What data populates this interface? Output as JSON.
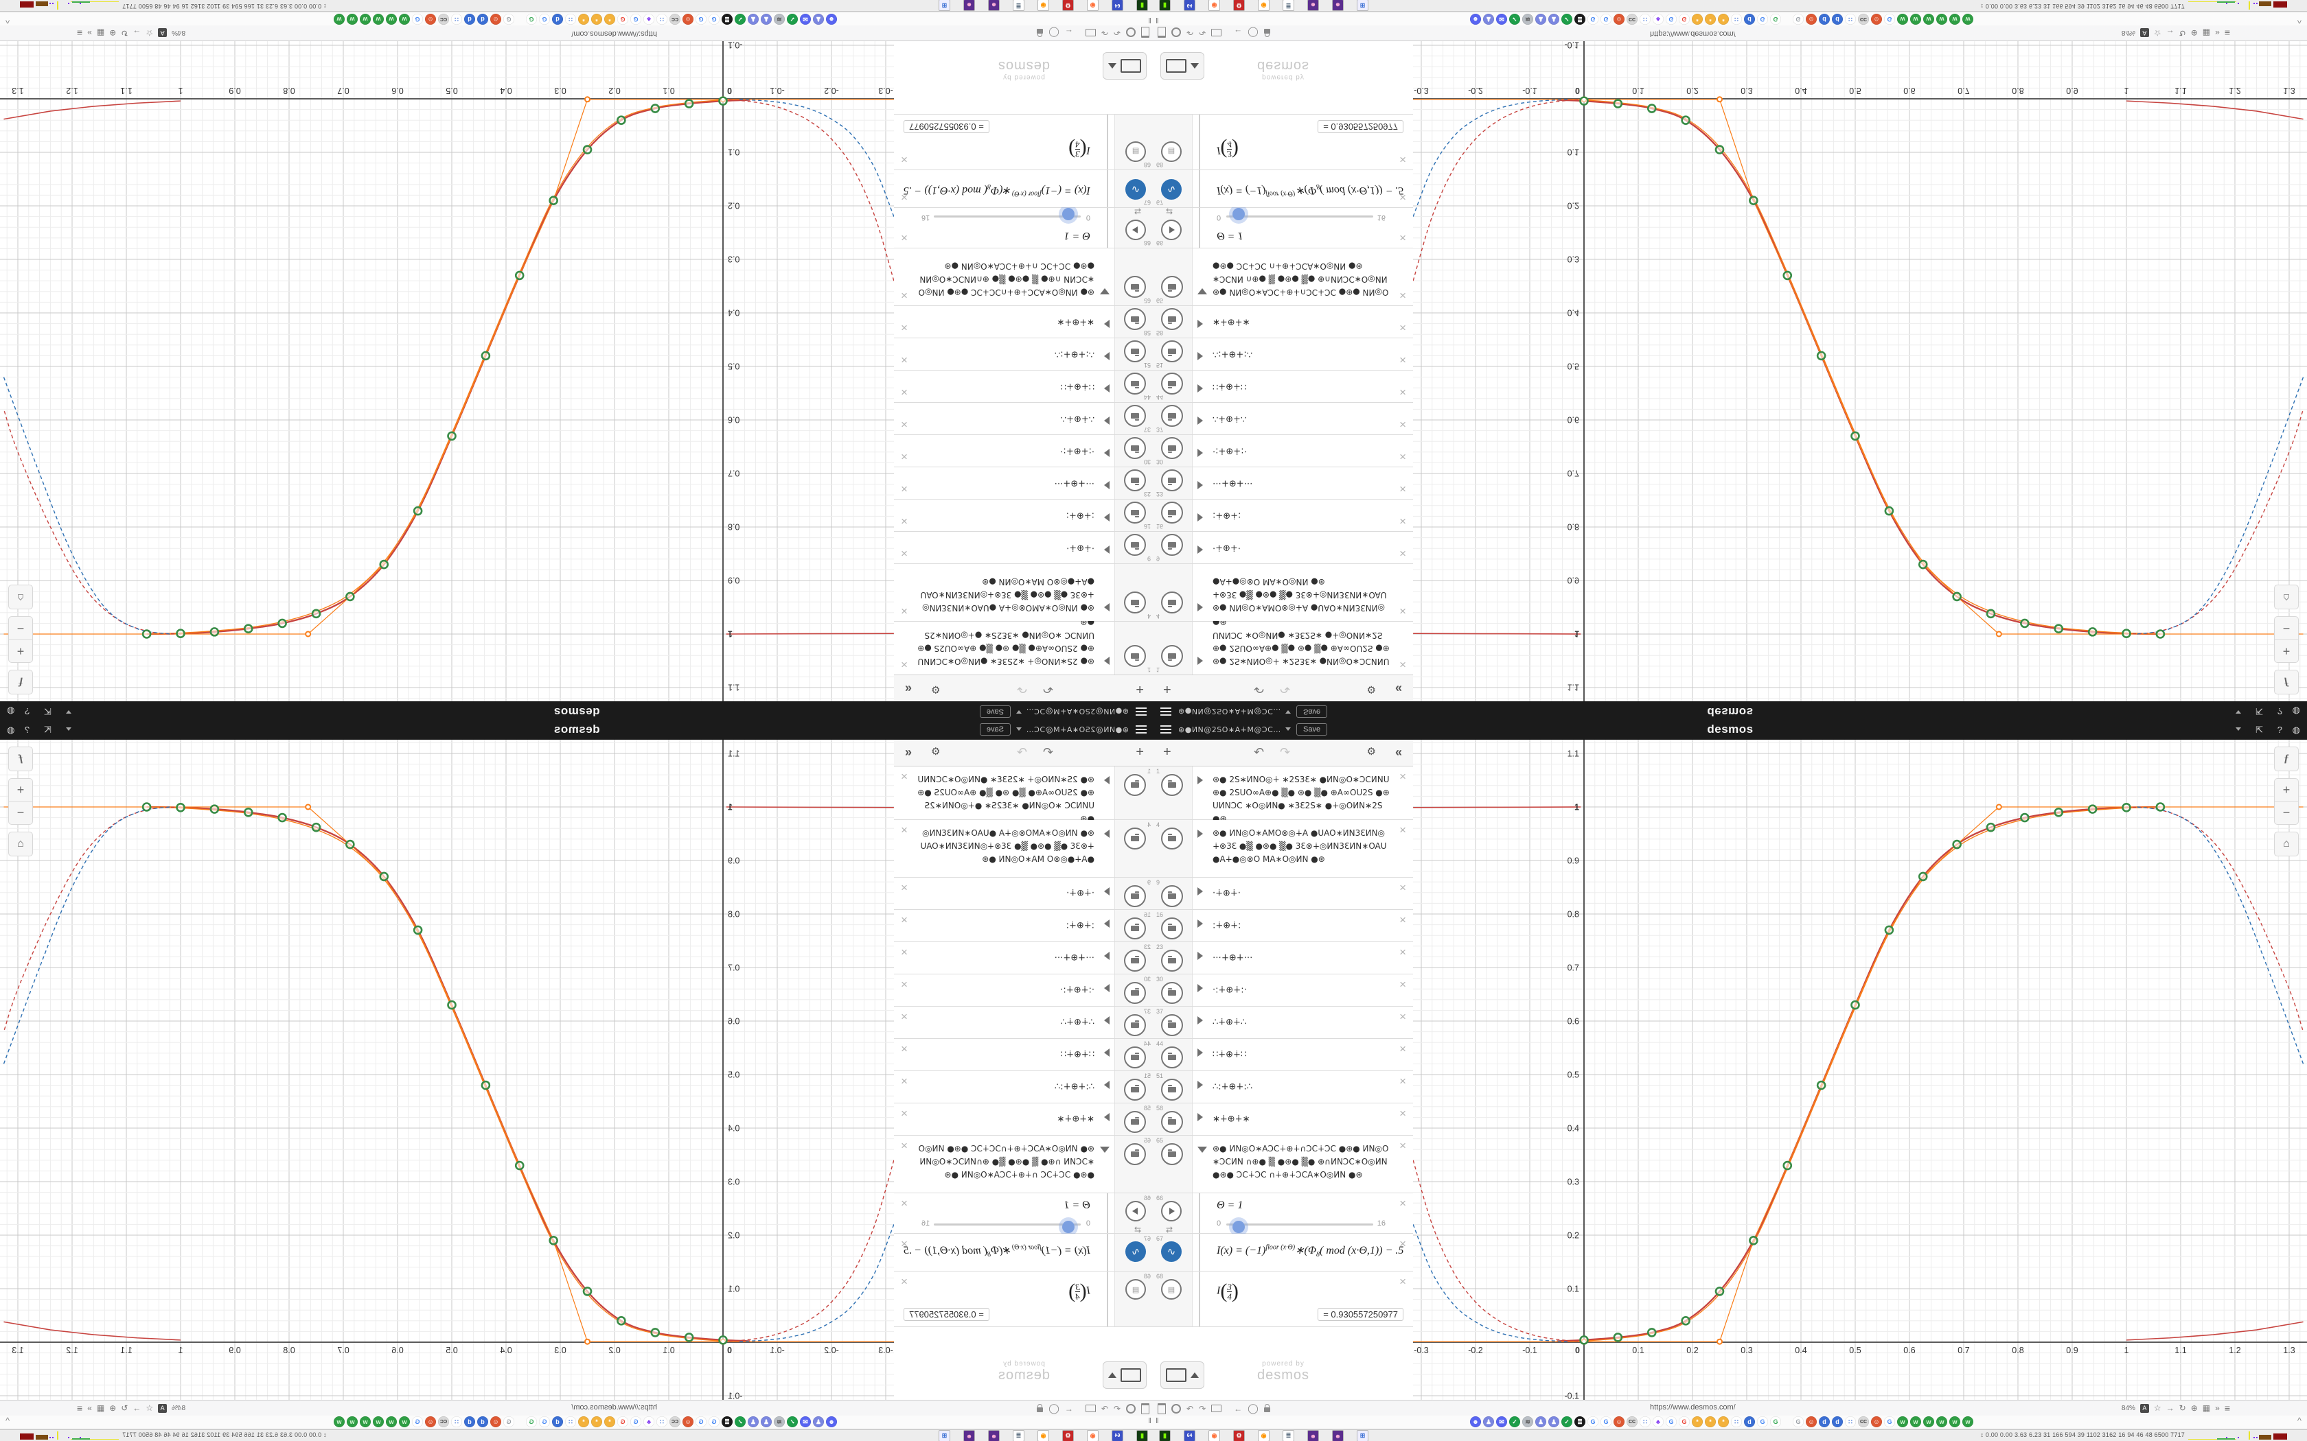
{
  "app": {
    "header": {
      "title_garbled": "⊛●ИN@2SO∗A∔M@ƆC…",
      "save_label": "Save",
      "logo": "desmos",
      "right_icons": [
        "caret-down",
        "share",
        "help",
        "globe"
      ]
    }
  },
  "panel": {
    "toolbar": {
      "add": "+",
      "undo": "↶",
      "redo": "↷",
      "gear": "⚙",
      "collapse": "«"
    },
    "rows": [
      {
        "i": "1",
        "icon": "folder",
        "kind": "garble",
        "lines": [
          "⊛● 2S∗ИNO◎∔ ∗2S3Ɛ∗ ●ИN◎O∗ƆCИNU⊕●",
          "2SUO∞A⊕● ▒● ⊛● ▒● ⊕A∞OU2S ●⊕UИNƆC",
          "∗O◎ИN● ∗3Ɛ2S∗ ●∔◎OИN∗2S ●⊛"
        ]
      },
      {
        "i": "4",
        "icon": "folder",
        "kind": "garble",
        "lines": [
          "⊛● ИN◎O∗AMO⊗◎∔A ●UAO∗ИN3ƐИN◎∔⊗3Ɛ",
          "●▒ ●⊛● ▒● 3Ɛ⊗∔◎ИN3ƐИN∗OAU ●A∔●◎⊗O",
          "MA∗O◎ИN ●⊛"
        ]
      },
      {
        "i": "9",
        "icon": "folder",
        "kind": "mini",
        "text": "·∔⊕∔·"
      },
      {
        "i": "16",
        "icon": "folder",
        "kind": "mini",
        "text": ":∔⊕∔:"
      },
      {
        "i": "23",
        "icon": "folder",
        "kind": "mini",
        "text": "⋯∔⊕∔⋯"
      },
      {
        "i": "30",
        "icon": "folder",
        "kind": "mini",
        "text": "·:∔⊕∔:·"
      },
      {
        "i": "37",
        "icon": "folder",
        "kind": "mini",
        "text": "∴∔⊕∔∴"
      },
      {
        "i": "44",
        "icon": "folder",
        "kind": "mini",
        "text": "∷∔⊕∔∷"
      },
      {
        "i": "51",
        "icon": "folder",
        "kind": "mini",
        "text": "∴:∔⊕∔:∴"
      },
      {
        "i": "58",
        "icon": "folder",
        "kind": "mini",
        "text": "∗∔⊕∔∗"
      },
      {
        "i": "65",
        "icon": "folder-open",
        "kind": "garble",
        "lines": [
          "⊛● ИN◎O∗AƆC∔⊕∔∩ƆC∔ƆC ●⊛● ИN◎O∗ƆCИN",
          "∩⊕● ▒ ●⊛● ▒● ⊕∩ИNƆC∗O◎ИN ●⊛● ƆC∔ƆC",
          "∩∔⊕∔ƆCA∗O◎ИN ●⊛"
        ]
      },
      {
        "i": "66",
        "icon": "play",
        "kind": "slider",
        "slider": {
          "label": "Θ = 1",
          "min": "0",
          "max": "16",
          "fraction": 0.0625
        }
      },
      {
        "i": "67",
        "icon": "wave-blue",
        "kind": "formula",
        "formula": {
          "pre": "I(x) = (−1)",
          "sup": "floor (x·Θ)",
          "post": "∗(Φ",
          "sub": "8",
          "tail": "( mod (x·Θ,1)) − .5"
        }
      },
      {
        "i": "68",
        "icon": "dup",
        "kind": "eval",
        "eval": {
          "fname": "I",
          "num": "3",
          "den": "4",
          "value": "= 0.930557250977"
        }
      }
    ],
    "keyboard_caret": "▲",
    "watermark": {
      "line1": "powered by",
      "line2": "desmos"
    }
  },
  "chart_data": {
    "type": "line",
    "title": "",
    "xlabel": "",
    "ylabel": "",
    "xlim": [
      -0.315,
      1.326
    ],
    "ylim": [
      -0.108,
      1.126
    ],
    "grid": {
      "minor_step": 0.02,
      "major_step": 0.1
    },
    "x_ticks": [
      {
        "v": -0.3,
        "l": "-0.3"
      },
      {
        "v": -0.2,
        "l": "-0.2"
      },
      {
        "v": -0.1,
        "l": "-0.1"
      },
      {
        "v": 0,
        "l": "0"
      },
      {
        "v": 0.1,
        "l": "0.1"
      },
      {
        "v": 0.2,
        "l": "0.2"
      },
      {
        "v": 0.3,
        "l": "0.3"
      },
      {
        "v": 0.4,
        "l": "0.4"
      },
      {
        "v": 0.5,
        "l": "0.5"
      },
      {
        "v": 0.6,
        "l": "0.6"
      },
      {
        "v": 0.7,
        "l": "0.7"
      },
      {
        "v": 0.8,
        "l": "0.8"
      },
      {
        "v": 0.9,
        "l": "0.9"
      },
      {
        "v": 1,
        "l": "1"
      },
      {
        "v": 1.1,
        "l": "1.1"
      },
      {
        "v": 1.2,
        "l": "1.2"
      },
      {
        "v": 1.3,
        "l": "1.3"
      }
    ],
    "y_ticks": [
      {
        "v": -0.1,
        "l": "-0.1"
      },
      {
        "v": 0.1,
        "l": "0.1"
      },
      {
        "v": 0.2,
        "l": "0.2"
      },
      {
        "v": 0.3,
        "l": "0.3"
      },
      {
        "v": 0.4,
        "l": "0.4"
      },
      {
        "v": 0.5,
        "l": "0.5"
      },
      {
        "v": 0.6,
        "l": "0.6"
      },
      {
        "v": 0.7,
        "l": "0.7"
      },
      {
        "v": 0.8,
        "l": "0.8"
      },
      {
        "v": 0.9,
        "l": "0.9"
      },
      {
        "v": 1,
        "l": "1"
      },
      {
        "v": 1.1,
        "l": "1.1"
      }
    ],
    "series": [
      {
        "name": "smoothstep-red",
        "color": "#c74440",
        "width": 2.4,
        "dash": "",
        "smooth": true,
        "points": [
          [
            -0.05,
            0.002
          ],
          [
            0,
            0.004
          ],
          [
            0.0625,
            0.009
          ],
          [
            0.125,
            0.018
          ],
          [
            0.1875,
            0.04
          ],
          [
            0.25,
            0.095
          ],
          [
            0.3125,
            0.19
          ],
          [
            0.375,
            0.33
          ],
          [
            0.4375,
            0.48
          ],
          [
            0.5,
            0.63
          ],
          [
            0.5625,
            0.77
          ],
          [
            0.625,
            0.87
          ],
          [
            0.6875,
            0.93
          ],
          [
            0.75,
            0.962
          ],
          [
            0.8125,
            0.98
          ],
          [
            0.875,
            0.99
          ],
          [
            0.9375,
            0.996
          ],
          [
            1,
            0.999
          ],
          [
            1.0625,
            1
          ]
        ]
      },
      {
        "name": "smoothstep-orange",
        "color": "#fa7e19",
        "width": 1.3,
        "dash": "",
        "smooth": true,
        "points": [
          [
            0,
            0.002
          ],
          [
            0.0625,
            0.007
          ],
          [
            0.125,
            0.016
          ],
          [
            0.1875,
            0.037
          ],
          [
            0.25,
            0.09
          ],
          [
            0.3125,
            0.185
          ],
          [
            0.375,
            0.325
          ],
          [
            0.4375,
            0.475
          ],
          [
            0.5,
            0.625
          ],
          [
            0.5625,
            0.765
          ],
          [
            0.625,
            0.865
          ],
          [
            0.6875,
            0.925
          ],
          [
            0.75,
            0.958
          ],
          [
            0.8125,
            0.977
          ],
          [
            0.875,
            0.988
          ],
          [
            0.9375,
            0.994
          ],
          [
            1,
            0.998
          ],
          [
            1.05,
            0.999
          ]
        ]
      },
      {
        "name": "red-left-plateau",
        "color": "#c74440",
        "width": 1.6,
        "dash": "",
        "points": [
          [
            -0.315,
            0.999
          ],
          [
            -0.15,
            0.9995
          ],
          [
            -0.006,
            1.0
          ]
        ]
      },
      {
        "name": "red-right-tail",
        "color": "#c74440",
        "width": 1.6,
        "dash": "",
        "points": [
          [
            1.0,
            0.004
          ],
          [
            1.08,
            0.008
          ],
          [
            1.16,
            0.014
          ],
          [
            1.24,
            0.023
          ],
          [
            1.326,
            0.038
          ]
        ]
      },
      {
        "name": "orange-approx-polyline",
        "color": "#fa7e19",
        "width": 1.2,
        "dash": "",
        "points": [
          [
            -0.315,
            0.001
          ],
          [
            0.25,
            0.001
          ],
          [
            0.3125,
            0.19
          ],
          [
            0.375,
            0.33
          ],
          [
            0.4375,
            0.48
          ],
          [
            0.5,
            0.63
          ],
          [
            0.5625,
            0.77
          ],
          [
            0.625,
            0.87
          ],
          [
            0.6875,
            0.93
          ],
          [
            0.765,
            1.0
          ],
          [
            1.326,
            1.0
          ]
        ]
      },
      {
        "name": "dashed-red-left",
        "color": "#c74440",
        "width": 1.4,
        "dash": "5 4",
        "smooth": true,
        "points": [
          [
            -0.315,
            0.34
          ],
          [
            -0.28,
            0.22
          ],
          [
            -0.24,
            0.13
          ],
          [
            -0.2,
            0.075
          ],
          [
            -0.16,
            0.042
          ],
          [
            -0.12,
            0.022
          ],
          [
            -0.08,
            0.01
          ],
          [
            -0.04,
            0.004
          ],
          [
            -0.01,
            0.002
          ]
        ]
      },
      {
        "name": "dashed-blue-left",
        "color": "#2d70b3",
        "width": 1.4,
        "dash": "5 4",
        "smooth": true,
        "points": [
          [
            -0.315,
            0.22
          ],
          [
            -0.28,
            0.13
          ],
          [
            -0.24,
            0.07
          ],
          [
            -0.2,
            0.038
          ],
          [
            -0.16,
            0.019
          ],
          [
            -0.12,
            0.009
          ],
          [
            -0.08,
            0.004
          ],
          [
            -0.03,
            0.001
          ]
        ]
      },
      {
        "name": "dashed-red-right",
        "color": "#c74440",
        "width": 1.4,
        "dash": "5 4",
        "smooth": true,
        "points": [
          [
            1.0,
            1.0
          ],
          [
            1.06,
            0.995
          ],
          [
            1.12,
            0.97
          ],
          [
            1.18,
            0.91
          ],
          [
            1.24,
            0.8
          ],
          [
            1.3,
            0.66
          ],
          [
            1.326,
            0.58
          ]
        ]
      },
      {
        "name": "dashed-blue-right",
        "color": "#2d70b3",
        "width": 1.4,
        "dash": "5 4",
        "smooth": true,
        "points": [
          [
            1.02,
            1.0
          ],
          [
            1.08,
            0.99
          ],
          [
            1.14,
            0.95
          ],
          [
            1.2,
            0.85
          ],
          [
            1.26,
            0.7
          ],
          [
            1.326,
            0.52
          ]
        ]
      }
    ],
    "sample_points_green": {
      "color": "#388c46",
      "points": [
        [
          0,
          0.004
        ],
        [
          0.0625,
          0.009
        ],
        [
          0.125,
          0.018
        ],
        [
          0.1875,
          0.04
        ],
        [
          0.25,
          0.095
        ],
        [
          0.3125,
          0.19
        ],
        [
          0.375,
          0.33
        ],
        [
          0.4375,
          0.48
        ],
        [
          0.5,
          0.63
        ],
        [
          0.5625,
          0.77
        ],
        [
          0.625,
          0.87
        ],
        [
          0.6875,
          0.93
        ],
        [
          0.75,
          0.962
        ],
        [
          0.8125,
          0.98
        ],
        [
          0.875,
          0.99
        ],
        [
          0.9375,
          0.996
        ],
        [
          1,
          0.999
        ],
        [
          1.0625,
          1
        ]
      ]
    },
    "vertex_points_orange": {
      "color": "#fa7e19",
      "points": [
        [
          0,
          0.001
        ],
        [
          0.25,
          0.001
        ],
        [
          0.765,
          1.0
        ]
      ]
    },
    "legend": "off",
    "controls": {
      "wrench": "ƒ",
      "plus": "+",
      "minus": "−",
      "home": "⌂"
    }
  },
  "browser": {
    "navbar": {
      "url": "https://www.desmos.com/",
      "zoom_level": "84%",
      "right_icons": [
        "translate",
        "star",
        "forward",
        "reload",
        "globe",
        "extensions",
        "overflow",
        "menu"
      ],
      "star": "☆",
      "forward": "→",
      "reload": "↻",
      "globe2": "⊕",
      "ext": "▦",
      "overflow": "»",
      "menu": "≡",
      "translate_letter": "A"
    },
    "tabrow": {
      "pipes": "‖",
      "chevron": "^",
      "favicons": [
        {
          "c": "#5865F2",
          "t": "☻",
          "tc": "#ffffff"
        },
        {
          "c": "#7b87e0",
          "t": "♟",
          "tc": "#ffffff"
        },
        {
          "c": "#5865F2",
          "t": "✉",
          "tc": "#ffffff"
        },
        {
          "c": "#1e9e4a",
          "t": "✓",
          "tc": "#ffffff"
        },
        {
          "c": "#b9bec4",
          "t": "≋",
          "tc": "#555555"
        },
        {
          "c": "#7b87e0",
          "t": "♟",
          "tc": "#ffffff"
        },
        {
          "c": "#7b87e0",
          "t": "♟",
          "tc": "#ffffff"
        },
        {
          "c": "#1e9e4a",
          "t": "✓",
          "tc": "#ffffff"
        },
        {
          "c": "#1b1b1b",
          "t": "≣",
          "tc": "#ffffff"
        },
        {
          "c": "#ffffff",
          "t": "G",
          "tc": "#4285F4"
        },
        {
          "c": "#ffffff",
          "t": "G",
          "tc": "#4285F4"
        },
        {
          "c": "#de5833",
          "t": "☺",
          "tc": "#ffffff"
        },
        {
          "c": "#d8d8d8",
          "t": "CC",
          "tc": "#333333"
        },
        {
          "c": "#ffffff",
          "t": "∷",
          "tc": "#3b6fd4"
        },
        {
          "c": "#ffffff",
          "t": "♣",
          "tc": "#7b2ff2"
        },
        {
          "c": "#ffffff",
          "t": "G",
          "tc": "#4285F4"
        },
        {
          "c": "#ffffff",
          "t": "G",
          "tc": "#ea4335"
        },
        {
          "c": "#f3b23c",
          "t": "*",
          "tc": "#ffffff"
        },
        {
          "c": "#f3b23c",
          "t": "*",
          "tc": "#ffffff"
        },
        {
          "c": "#f3b23c",
          "t": "*",
          "tc": "#ffffff"
        },
        {
          "c": "#ffffff",
          "t": "∷",
          "tc": "#3b6fd4"
        },
        {
          "c": "#3b6fd4",
          "t": "d",
          "tc": "#ffffff"
        },
        {
          "c": "#ffffff",
          "t": "G",
          "tc": "#4285F4"
        },
        {
          "c": "#ffffff",
          "t": "G",
          "tc": "#34a853"
        },
        {
          "c": "#ffffff",
          "t": "G",
          "tc": "#9aa0a6",
          "gap": true
        },
        {
          "c": "#de5833",
          "t": "☺",
          "tc": "#ffffff"
        },
        {
          "c": "#3b6fd4",
          "t": "d",
          "tc": "#ffffff"
        },
        {
          "c": "#3b6fd4",
          "t": "d",
          "tc": "#ffffff"
        },
        {
          "c": "#ffffff",
          "t": "∷",
          "tc": "#3b6fd4"
        },
        {
          "c": "#d8d8d8",
          "t": "CC",
          "tc": "#333333"
        },
        {
          "c": "#de5833",
          "t": "☺",
          "tc": "#ffffff"
        },
        {
          "c": "#ffffff",
          "t": "G",
          "tc": "#4285F4"
        },
        {
          "c": "#2f9e44",
          "t": "w",
          "tc": "#d9f7d9"
        },
        {
          "c": "#2f9e44",
          "t": "w",
          "tc": "#d9f7d9"
        },
        {
          "c": "#2f9e44",
          "t": "w",
          "tc": "#d9f7d9"
        },
        {
          "c": "#2f9e44",
          "t": "w",
          "tc": "#d9f7d9"
        },
        {
          "c": "#2f9e44",
          "t": "w",
          "tc": "#d9f7d9"
        },
        {
          "c": "#2f9e44",
          "t": "w",
          "tc": "#d9f7d9"
        }
      ]
    },
    "taskbar": {
      "launchers": [
        {
          "g": "▮",
          "gc": "#7CFC00",
          "bg": "#123b12"
        },
        {
          "g": "64",
          "gc": "#ffffff",
          "bg": "#3a51c6"
        },
        {
          "g": "◉",
          "gc": "#ff7139",
          "bg": "#ffffff"
        },
        {
          "g": "⚙",
          "gc": "#ffffff",
          "bg": "#c62828"
        },
        {
          "g": "◉",
          "gc": "#ff9500",
          "bg": "#ffffff"
        },
        {
          "g": "≣",
          "gc": "#667788",
          "bg": "#ffffff"
        },
        {
          "g": "☻",
          "gc": "#ffb3d9",
          "bg": "#5b2d8e"
        },
        {
          "g": "☻",
          "gc": "#ffb3d9",
          "bg": "#5b2d8e"
        },
        {
          "g": "⊞",
          "gc": "#3b6fd4",
          "bg": "#eeeeff"
        }
      ],
      "stats_icon": "↕",
      "stats": "0.00 0.00 3.63 6.23  31  166  594  39  1102 3162  16  94  46  48  6500 7717"
    }
  }
}
